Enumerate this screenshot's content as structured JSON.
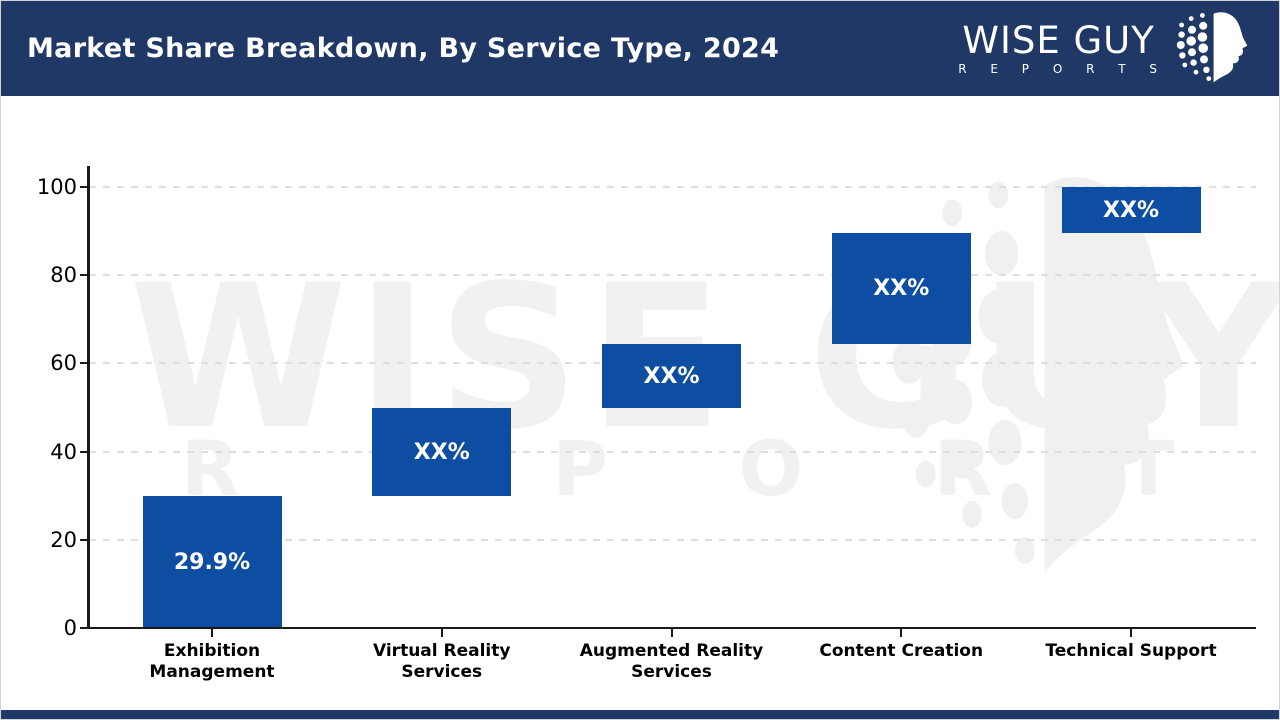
{
  "page": {
    "background": "#ffffff",
    "border_color": "#d4d4d4"
  },
  "header": {
    "title": "Market Share Breakdown, By Service Type, 2024",
    "background": "#1f3865",
    "logo": {
      "line1": "WISE GUY",
      "line2": "R E P O R T S"
    }
  },
  "footer": {
    "background": "#1f3865"
  },
  "watermark": {
    "line1": "WISE GUY",
    "line2": "R E P O R T S"
  },
  "chart_data": {
    "type": "bar",
    "subtype": "waterfall-floating-segments",
    "title": "Market Share Breakdown, By Service Type, 2024",
    "xlabel": "",
    "ylabel": "",
    "categories": [
      "Exhibition Management",
      "Virtual Reality Services",
      "Augmented Reality Services",
      "Content Creation",
      "Technical Support"
    ],
    "segments": [
      {
        "category": "Exhibition Management",
        "start": 0,
        "end": 29.9,
        "label": "29.9%"
      },
      {
        "category": "Virtual Reality Services",
        "start": 29.9,
        "end": 49.9,
        "label": "XX%"
      },
      {
        "category": "Augmented Reality Services",
        "start": 49.9,
        "end": 64.4,
        "label": "XX%"
      },
      {
        "category": "Content Creation",
        "start": 64.4,
        "end": 89.6,
        "label": "XX%"
      },
      {
        "category": "Technical Support",
        "start": 89.6,
        "end": 100,
        "label": "XX%"
      }
    ],
    "y_ticks": [
      0,
      20,
      40,
      60,
      80,
      100
    ],
    "ylim": [
      0,
      100
    ],
    "bar_color": "#0d4ea2",
    "bar_label_color": "#ffffff",
    "grid": "horizontal dashed, light gray",
    "legend": "none"
  }
}
